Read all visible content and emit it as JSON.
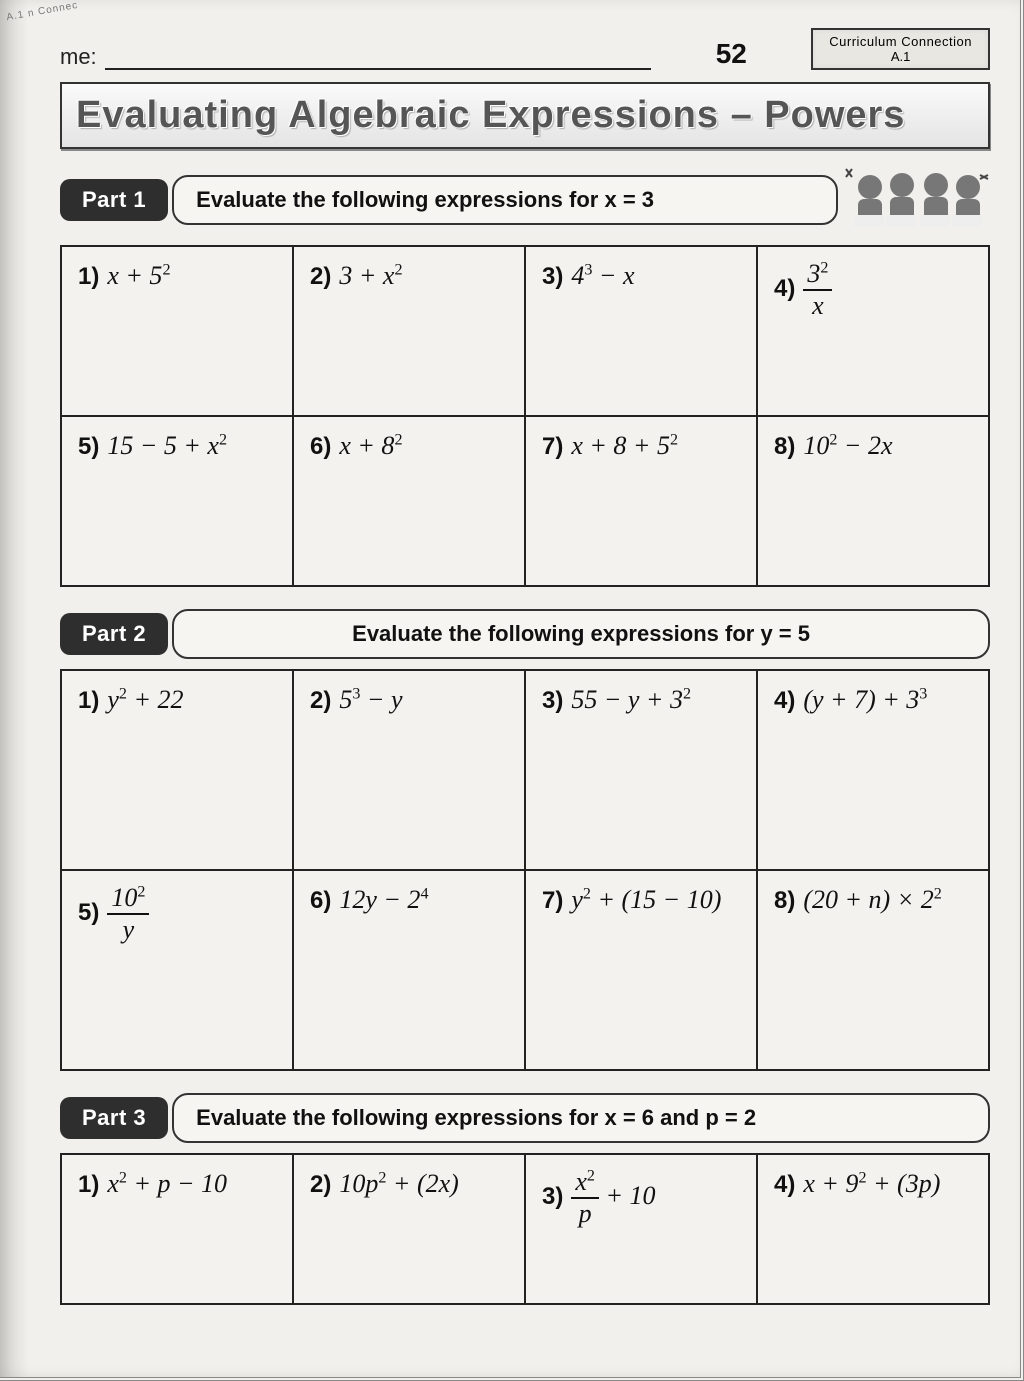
{
  "header": {
    "name_label": "me:",
    "page_number": "52",
    "curriculum_top": "Curriculum Connection",
    "curriculum_bottom": "A.1",
    "corner_tag": "A.1  n Connec"
  },
  "banner": "Evaluating Algebraic Expressions – Powers",
  "parts": [
    {
      "label": "Part 1",
      "instruction": "Evaluate the following expressions for x = 3",
      "show_kids": true,
      "cells": [
        {
          "n": "1)",
          "expr_html": "x + 5<sup>2</sup>"
        },
        {
          "n": "2)",
          "expr_html": "3 + x<sup>2</sup>"
        },
        {
          "n": "3)",
          "expr_html": "4<sup>3</sup> − x"
        },
        {
          "n": "4)",
          "expr_html": "<span class='frac'><span class='fn'>3<sup>2</sup></span><span class='fd'>x</span></span>"
        },
        {
          "n": "5)",
          "expr_html": "15 − 5 + x<sup>2</sup>"
        },
        {
          "n": "6)",
          "expr_html": "x + 8<sup>2</sup>"
        },
        {
          "n": "7)",
          "expr_html": "x + 8 + 5<sup>2</sup>"
        },
        {
          "n": "8)",
          "expr_html": "10<sup>2</sup> − 2x"
        }
      ]
    },
    {
      "label": "Part 2",
      "instruction": "Evaluate the following expressions for y = 5",
      "show_kids": false,
      "cells": [
        {
          "n": "1)",
          "expr_html": "y<sup>2</sup> + 22"
        },
        {
          "n": "2)",
          "expr_html": "5<sup>3</sup> − y"
        },
        {
          "n": "3)",
          "expr_html": "55 − y + 3<sup>2</sup>"
        },
        {
          "n": "4)",
          "expr_html": "(y + 7) + 3<sup>3</sup>"
        },
        {
          "n": "5)",
          "expr_html": "<span class='frac'><span class='fn'>10<sup>2</sup></span><span class='fd'>y</span></span>"
        },
        {
          "n": "6)",
          "expr_html": "12y − 2<sup>4</sup>"
        },
        {
          "n": "7)",
          "expr_html": "y<sup>2</sup> + (15 − 10)"
        },
        {
          "n": "8)",
          "expr_html": "(20 + n) × 2<sup>2</sup>"
        }
      ]
    },
    {
      "label": "Part 3",
      "instruction": "Evaluate the following expressions for x = 6 and p = 2",
      "show_kids": false,
      "cells": [
        {
          "n": "1)",
          "expr_html": "x<sup>2</sup> + p − 10"
        },
        {
          "n": "2)",
          "expr_html": "10p<sup>2</sup> + (2x)"
        },
        {
          "n": "3)",
          "expr_html": "<span class='frac'><span class='fn'>x<sup>2</sup></span><span class='fd'>p</span></span> + 10"
        },
        {
          "n": "4)",
          "expr_html": "x + 9<sup>2</sup> + (3p)"
        }
      ]
    }
  ],
  "style": {
    "page_bg": "#f2f0ec",
    "border_color": "#222222",
    "pill_bg": "#2e2e2e",
    "pill_fg": "#ffffff",
    "banner_text_color": "#555555",
    "font_family": "Helvetica Neue, Arial, sans-serif",
    "expr_font": "Times New Roman, serif",
    "cell_font_size": 24,
    "banner_font_size": 38
  }
}
